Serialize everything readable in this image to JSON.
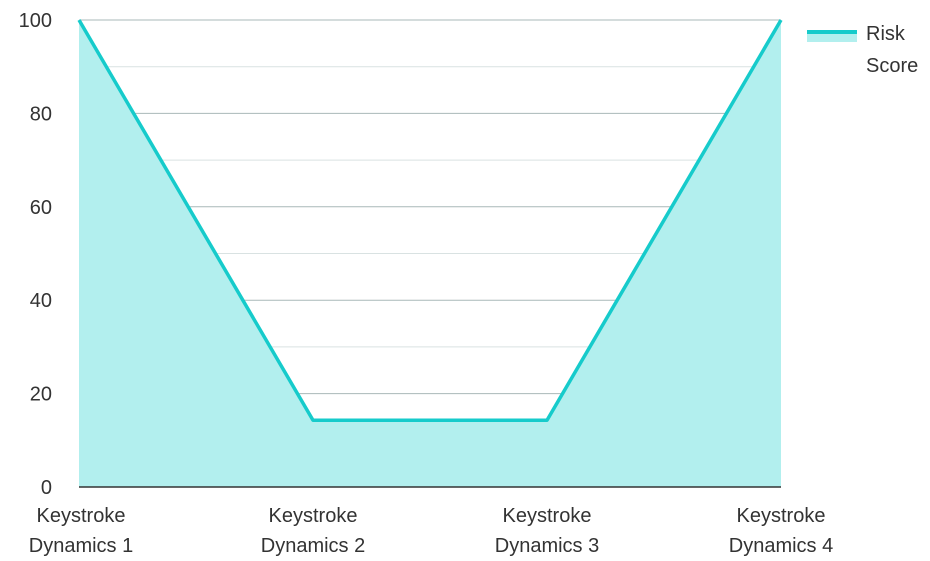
{
  "chart_data": {
    "type": "area",
    "categories": [
      [
        "Keystroke",
        "Dynamics 1"
      ],
      [
        "Keystroke",
        "Dynamics 2"
      ],
      [
        "Keystroke",
        "Dynamics 3"
      ],
      [
        "Keystroke",
        "Dynamics 4"
      ]
    ],
    "series": [
      {
        "name": "Risk Score",
        "name_lines": [
          "Risk",
          "Score"
        ],
        "values": [
          100,
          14.3,
          14.3,
          100
        ]
      }
    ],
    "yticks": [
      "0",
      "20",
      "40",
      "60",
      "80",
      "100"
    ],
    "ylim": [
      0,
      100
    ],
    "grid": true,
    "legend": "top-right",
    "colors": {
      "line": "#16cbcb",
      "fill": "#b2efee",
      "grid_major": "#a9b8b8",
      "grid_minor": "#d9e2e2",
      "axis": "#333333"
    }
  }
}
